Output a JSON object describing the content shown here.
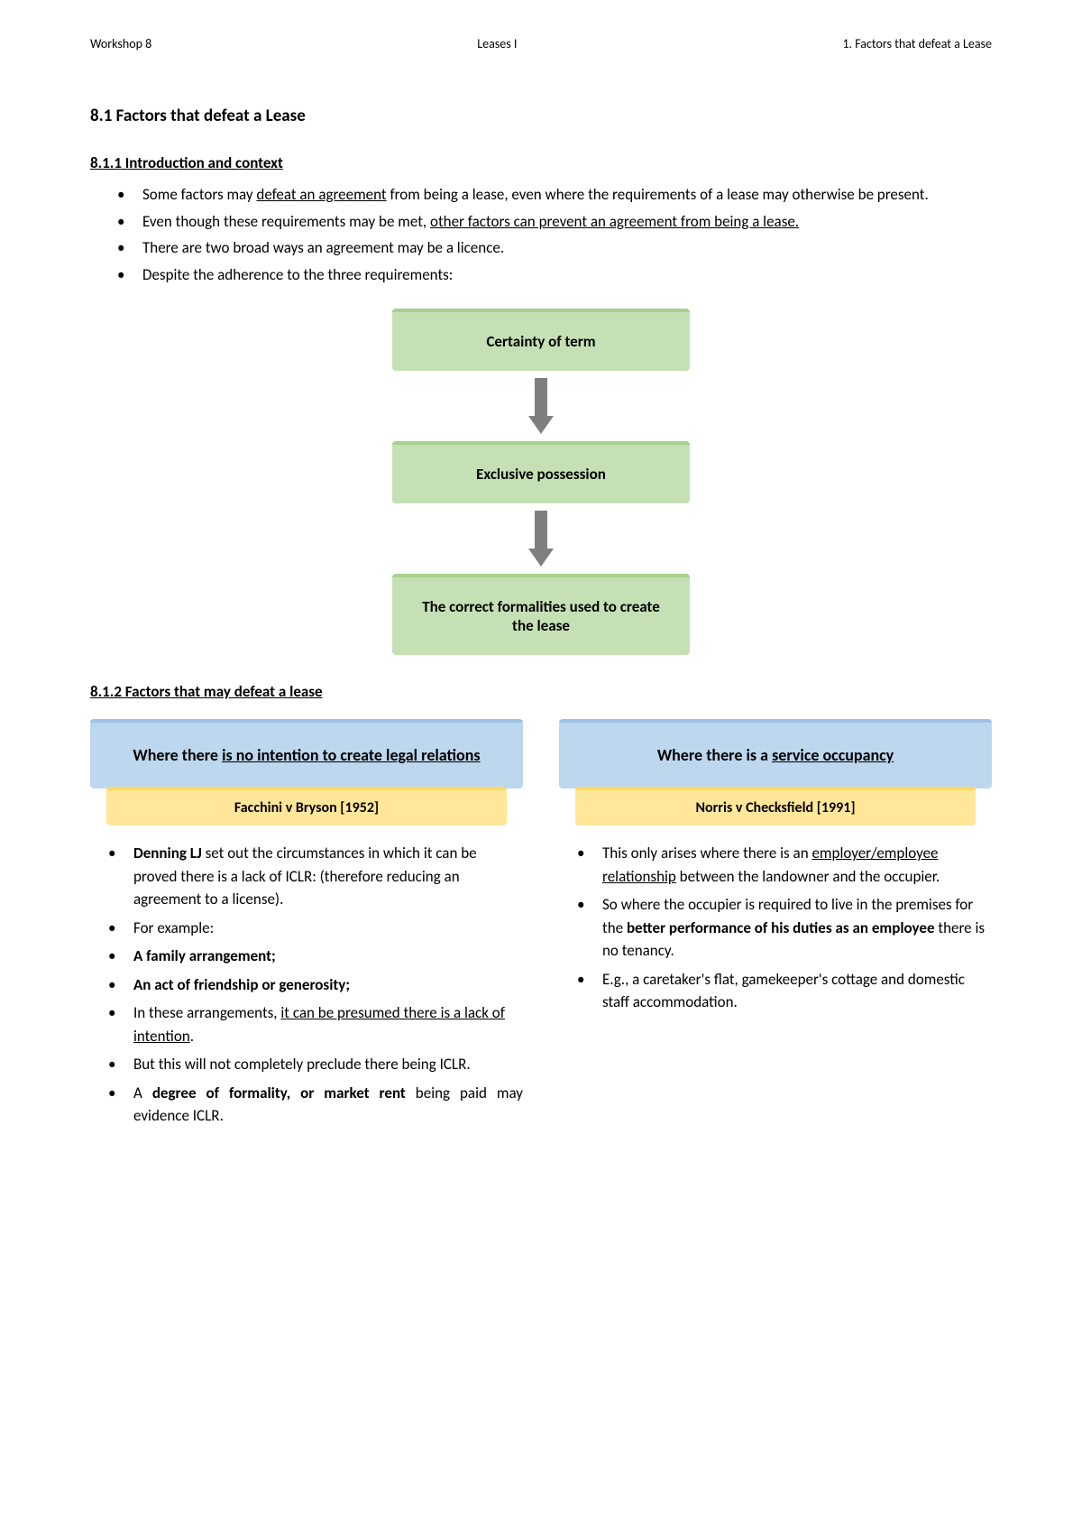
{
  "header": {
    "left": "Workshop 8",
    "center": "Leases I",
    "right": "1. Factors that defeat a Lease"
  },
  "title": "8.1 Factors that defeat a Lease",
  "section1": {
    "heading": "8.1.1 Introduction and context",
    "bullets": [
      {
        "pre": "Some factors may ",
        "u": "defeat an agreement",
        "post": " from being a lease, even where the requirements of a lease may otherwise be present."
      },
      {
        "pre": "Even though these requirements may be met, ",
        "u": "other factors can prevent an agreement from being a lease.",
        "post": ""
      },
      {
        "pre": "There are two broad ways an agreement may be a licence.",
        "u": "",
        "post": ""
      },
      {
        "pre": "Despite the adherence to the three requirements:",
        "u": "",
        "post": ""
      }
    ]
  },
  "flowchart": {
    "box1": "Certainty of term",
    "box2": "Exclusive possession",
    "box3": "The correct formalities used to create the lease",
    "colors": {
      "box_bg": "#c5e0b4",
      "box_border": "#a8d08d",
      "arrow": "#7f7f7f"
    }
  },
  "section2": {
    "heading": "8.1.2 Factors that may defeat a lease"
  },
  "columns": {
    "left": {
      "blue_pre": "Where there ",
      "blue_u": "is no intention to create legal relations",
      "yellow": "Facchini v Bryson [1952]",
      "bullets": [
        {
          "html": "<span class='b'>Denning LJ</span> set out the circumstances in which it can be proved there is a lack of ICLR: (therefore reducing an agreement to a license)."
        },
        {
          "html": "For example:"
        },
        {
          "html": "<span class='b'>A family arrangement;</span>"
        },
        {
          "html": "<span class='b'>An act of friendship or generosity;</span>"
        },
        {
          "html": "In these arrangements, <span class='u'>it can be presumed there is a lack of intention</span>."
        },
        {
          "html": "But this will not completely preclude there being ICLR."
        },
        {
          "html": "A <span class='b'>degree of formality, or market rent</span> being paid may evidence ICLR.",
          "justify": true
        }
      ]
    },
    "right": {
      "blue_pre": "Where there is a ",
      "blue_u": "service occupancy",
      "yellow": "Norris v Checksfield [1991]",
      "bullets": [
        {
          "html": "This only arises where there is an <span class='u'>employer/employee relationship</span> between the landowner and the occupier."
        },
        {
          "html": "So where the occupier is required to live in the premises for the <span class='b'>better performance of his duties as an employee</span> there is no tenancy."
        },
        {
          "html": "E.g., a caretaker's flat, gamekeeper's cottage and domestic staff accommodation."
        }
      ]
    },
    "colors": {
      "blue_bg": "#bdd7ee",
      "blue_border": "#9cc3e6",
      "yellow_bg": "#ffe699",
      "yellow_border": "#ffd966"
    }
  }
}
